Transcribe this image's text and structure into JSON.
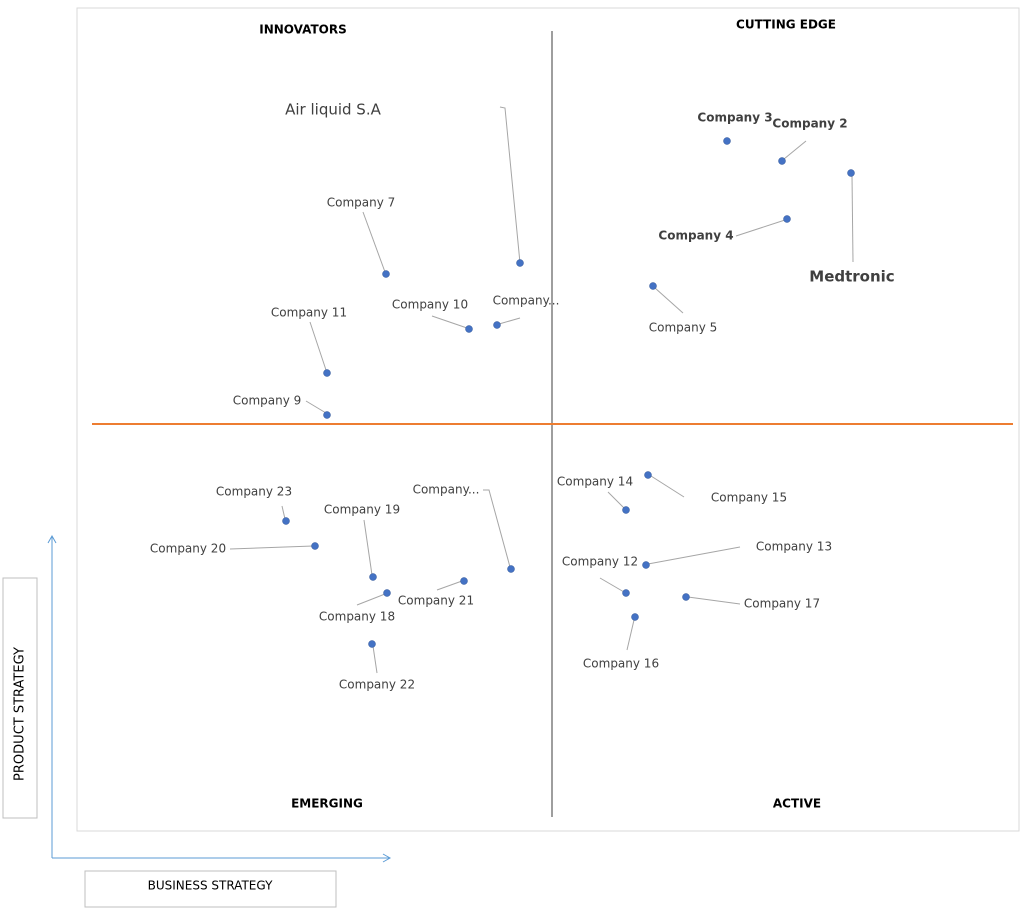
{
  "quadrants": {
    "innovators": "INNOVATORS",
    "cutting_edge": "CUTTING EDGE",
    "emerging": "EMERGING",
    "active": "ACTIVE"
  },
  "axes": {
    "y": "PRODUCT STRATEGY",
    "x": "BUSINESS STRATEGY"
  },
  "companies": [
    "Air liquid S.A",
    "Company 3",
    "Company 2",
    "Medtronic",
    "Company 4",
    "Company 5",
    "Company 7",
    "Company 10",
    "Company...",
    "Company 11",
    "Company 9",
    "Company 23",
    "Company 19",
    "Company...",
    "Company 20",
    "Company 18",
    "Company 21",
    "Company 22",
    "Company 14",
    "Company 15",
    "Company 13",
    "Company 12",
    "Company 17",
    "Company 16"
  ]
}
